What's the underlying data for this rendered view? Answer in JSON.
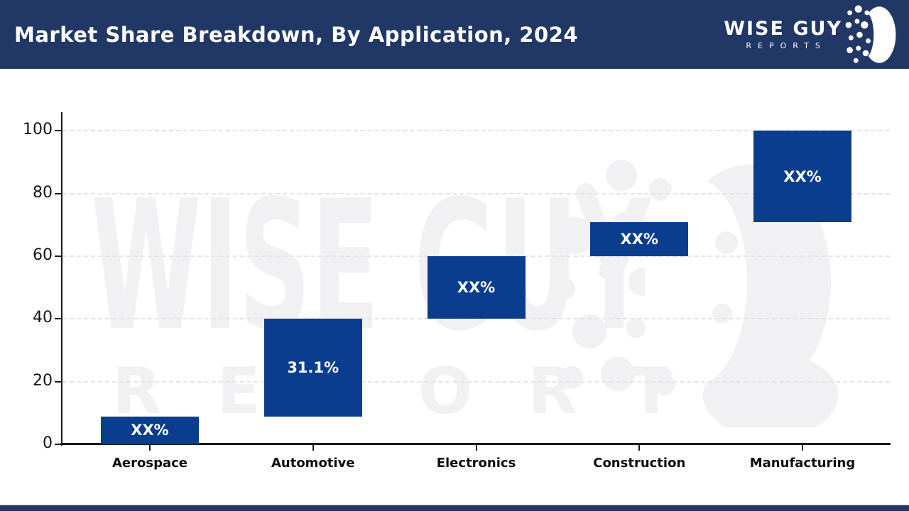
{
  "header": {
    "title": "Market Share Breakdown, By Application, 2024",
    "logo": {
      "line1": "WISE GUY",
      "line2": "REPORTS"
    }
  },
  "watermark": {
    "line1": "WISE GUY",
    "line2": "REPORTS"
  },
  "chart_data": {
    "type": "bar",
    "subtype": "waterfall",
    "title": "Market Share Breakdown, By Application, 2024",
    "categories": [
      "Aerospace",
      "Automotive",
      "Electronics",
      "Construction",
      "Manufacturing"
    ],
    "segments": [
      {
        "category": "Aerospace",
        "start": 0,
        "end": 8.9,
        "label": "XX%"
      },
      {
        "category": "Automotive",
        "start": 8.9,
        "end": 40,
        "label": "31.1%"
      },
      {
        "category": "Electronics",
        "start": 40,
        "end": 60,
        "label": "XX%"
      },
      {
        "category": "Construction",
        "start": 60,
        "end": 70.8,
        "label": "XX%"
      },
      {
        "category": "Manufacturing",
        "start": 70.8,
        "end": 100,
        "label": "XX%"
      }
    ],
    "y_ticks": [
      0,
      20,
      40,
      60,
      80,
      100
    ],
    "ylim": [
      0,
      106
    ],
    "xlabel": "",
    "ylabel": "",
    "grid": "horizontal-dashed",
    "legend": "none",
    "bar_color": "#0a3d8e"
  },
  "colors": {
    "header_bg": "#213766",
    "footer_bg": "#213766",
    "bar": "#0a3d8e",
    "gridline": "#e3e3e3",
    "axis": "#1a1a1a",
    "watermark": "#f1f1f4",
    "title_text": "#ffffff",
    "bar_label_text": "#ffffff"
  }
}
